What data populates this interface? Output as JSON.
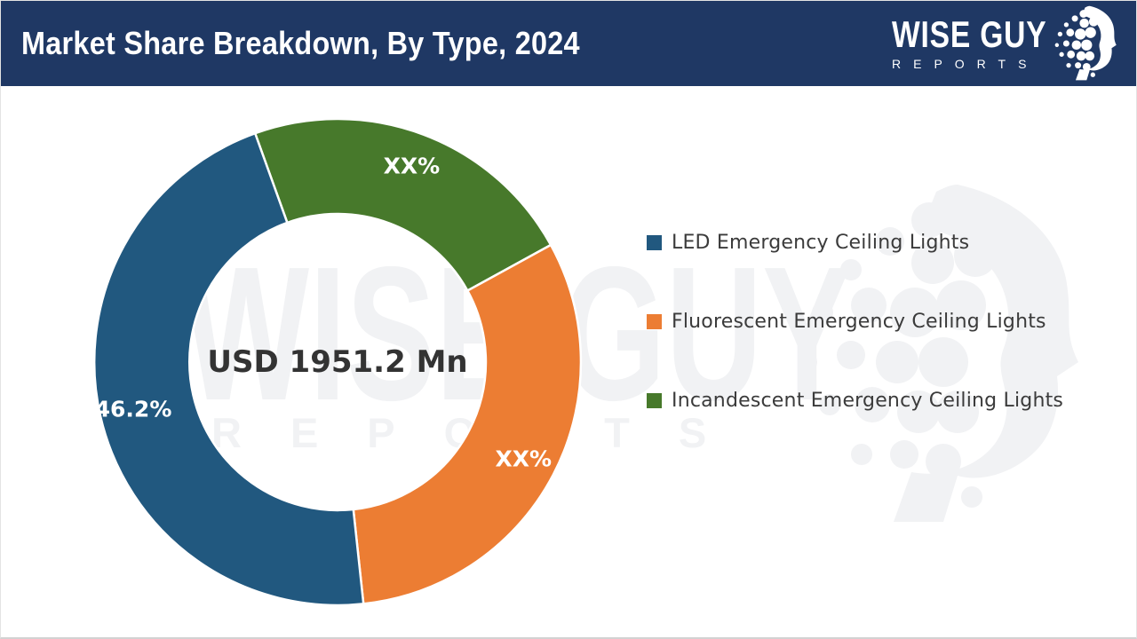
{
  "header": {
    "title": "Market Share Breakdown, By Type, 2024",
    "logo_line1": "WISE GUY",
    "logo_line2": "REPORTS"
  },
  "watermark": {
    "line1": "WISE GUY",
    "line2": "REPORTS"
  },
  "chart_data": {
    "type": "pie",
    "subtype": "donut",
    "title": "Market Share Breakdown, By Type, 2024",
    "center_label": "USD 1951.2 Mn",
    "start_angle_deg": -19.8,
    "direction": "clockwise",
    "legend_position": "right",
    "slices": [
      {
        "category": "Incandescent Emergency Ceiling Lights",
        "display_label": "XX%",
        "value": 22.5,
        "color": "#47792b"
      },
      {
        "category": "Fluorescent Emergency Ceiling Lights",
        "display_label": "XX%",
        "value": 31.3,
        "color": "#ec7d33"
      },
      {
        "category": "LED Emergency Ceiling Lights",
        "display_label": "46.2%",
        "value": 46.2,
        "color": "#21587f"
      }
    ],
    "legend": [
      {
        "label": "LED Emergency Ceiling Lights",
        "color": "#21587f"
      },
      {
        "label": "Fluorescent Emergency Ceiling Lights",
        "color": "#ec7d33"
      },
      {
        "label": "Incandescent Emergency Ceiling Lights",
        "color": "#47792b"
      }
    ]
  },
  "colors": {
    "header_bg": "#1f3864",
    "center_text": "#333333",
    "legend_text": "#3b3b3b",
    "watermark": "#f1f2f4"
  }
}
